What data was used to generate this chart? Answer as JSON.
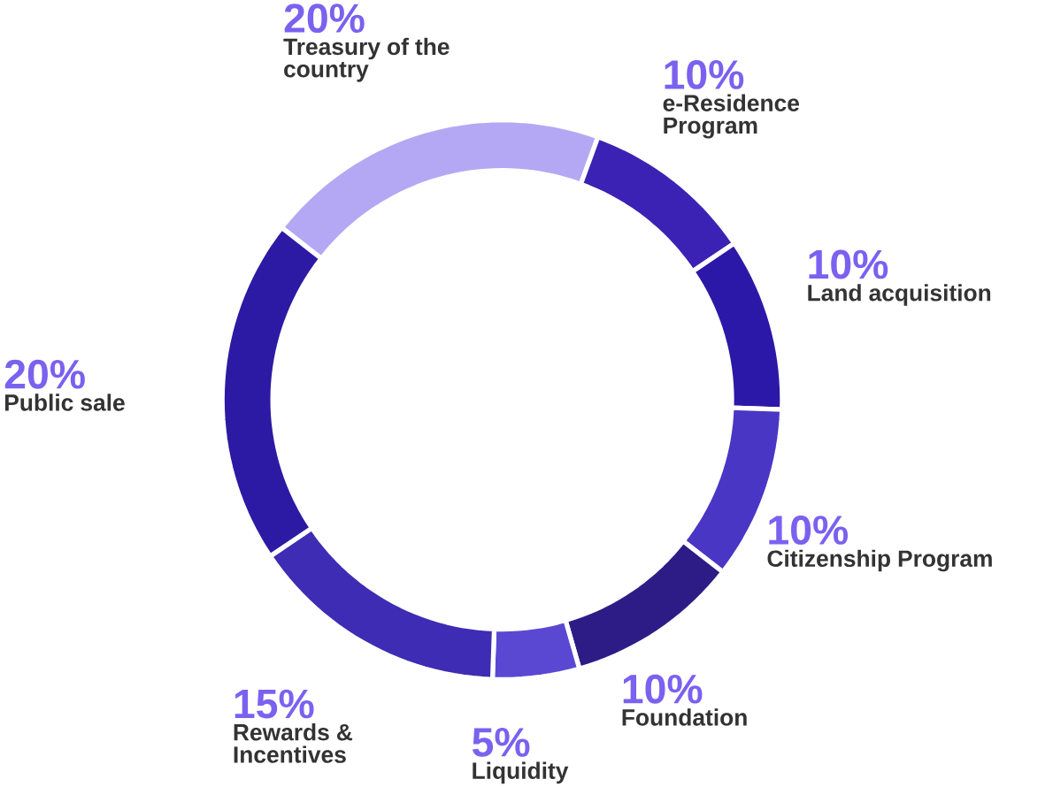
{
  "chart_data": {
    "type": "donut",
    "categories": [
      "Treasury of the country",
      "e-Residence Program",
      "Land acquisition",
      "Citizenship Program",
      "Foundation",
      "Liquidity",
      "Rewards & Incentives",
      "Public sale"
    ],
    "values": [
      20,
      10,
      10,
      10,
      10,
      5,
      15,
      20
    ],
    "value_labels": [
      "20%",
      "10%",
      "10%",
      "10%",
      "10%",
      "5%",
      "15%",
      "20%"
    ],
    "colors": [
      "#b4a8f4",
      "#3c22b4",
      "#2c18a8",
      "#4a36c4",
      "#2e1c86",
      "#5a48d2",
      "#3e2cb4",
      "#2c1aa4"
    ]
  }
}
